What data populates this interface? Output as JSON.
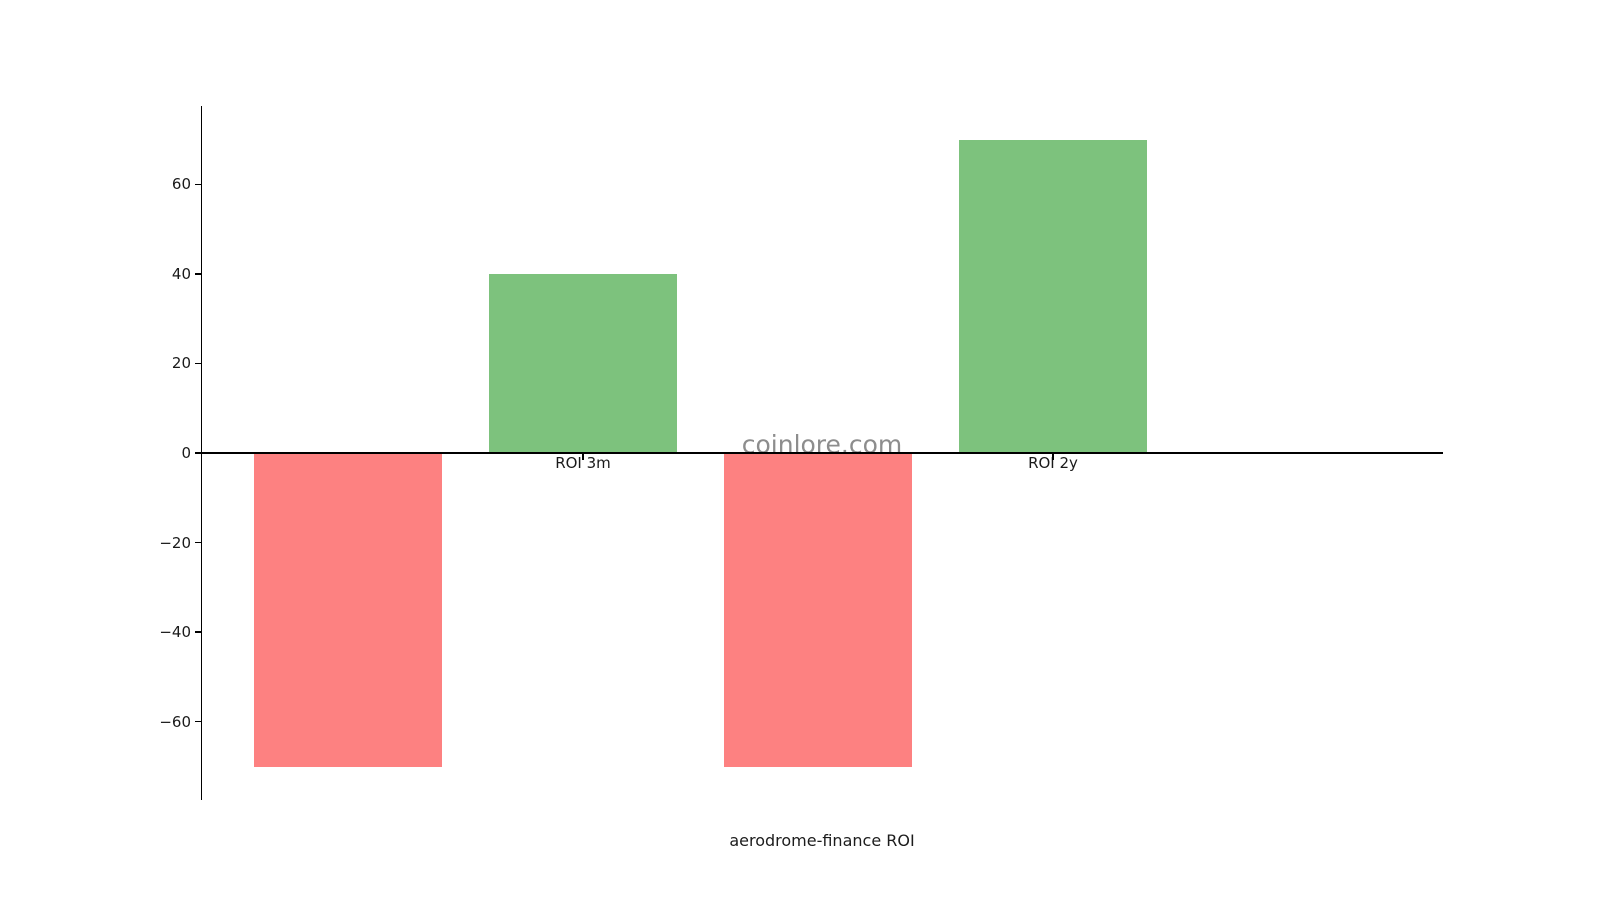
{
  "chart_data": {
    "type": "bar",
    "title": "",
    "xlabel": "aerodrome-finance ROI",
    "ylabel": "",
    "categories": [
      "",
      "ROI 3m",
      "",
      "ROI 2y"
    ],
    "values": [
      -70,
      40,
      -70,
      70
    ],
    "bar_colors": [
      "#fd8181",
      "#7dc27d",
      "#fd8181",
      "#7dc27d"
    ],
    "y_ticks": [
      60,
      40,
      20,
      0,
      -20,
      -40,
      -60
    ],
    "ylim": [
      -77.5,
      77.5
    ],
    "grid": false,
    "legend": "none",
    "bar_positive_color": "#7dc27d",
    "bar_negative_color": "#fd8181"
  },
  "watermark": {
    "text": "coinlore.com",
    "color": "#8d8d8d"
  },
  "axis": {
    "line_color": "#000000",
    "tick_label_color": "#1a1a1a"
  }
}
